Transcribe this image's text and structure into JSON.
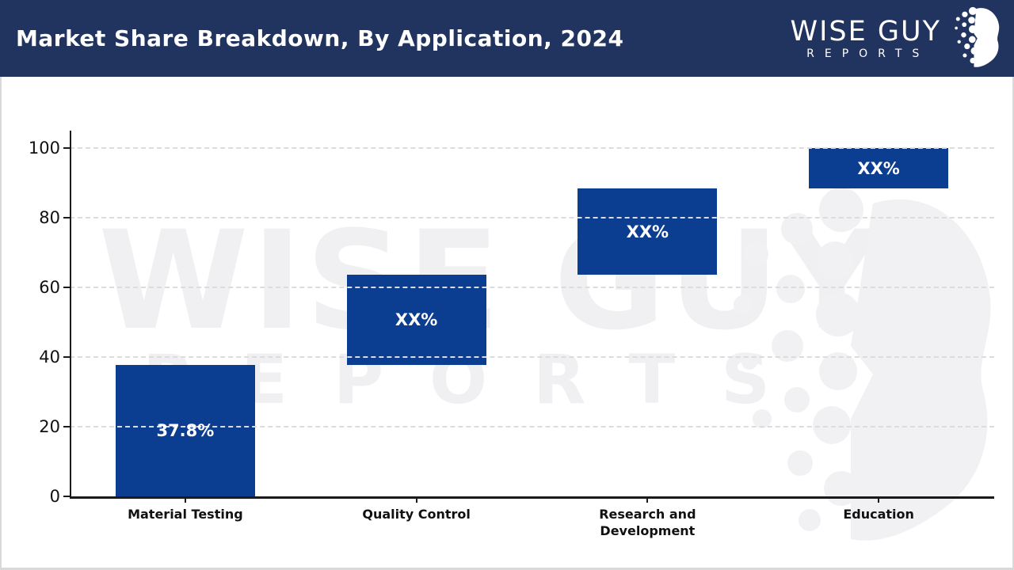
{
  "header": {
    "title": "Market Share Breakdown, By Application, 2024",
    "logo": {
      "wordmark": "WISE GUY",
      "reports": "REPORTS"
    }
  },
  "watermark": {
    "wordmark": "WISE GUY",
    "reports": "REPORTS"
  },
  "chart_data": {
    "type": "bar",
    "variant": "waterfall-floating-bars",
    "title": "Market Share Breakdown, By Application, 2024",
    "categories": [
      "Material Testing",
      "Quality Control",
      "Research and\nDevelopment",
      "Education"
    ],
    "segments": [
      {
        "category": "Material Testing",
        "start": 0,
        "end": 37.8,
        "label": "37.8%"
      },
      {
        "category": "Quality Control",
        "start": 37.8,
        "end": 63.6,
        "label": "XX%"
      },
      {
        "category": "Research and Development",
        "start": 63.6,
        "end": 88.4,
        "label": "XX%"
      },
      {
        "category": "Education",
        "start": 88.4,
        "end": 100,
        "label": "XX%"
      }
    ],
    "yticks": [
      0,
      20,
      40,
      60,
      80,
      100
    ],
    "ylim": [
      0,
      105
    ],
    "xlabel": "",
    "ylabel": "",
    "legend": "none",
    "grid": "horizontal-dashed",
    "gridlines_over_bars": true,
    "colors": {
      "bar": "#0b3d91",
      "grid": "#dcdcdc",
      "axis": "#1a1a1a",
      "header_bg": "#213460",
      "watermark": "#f0f0f2",
      "label_on_bar": "#ffffff"
    }
  }
}
